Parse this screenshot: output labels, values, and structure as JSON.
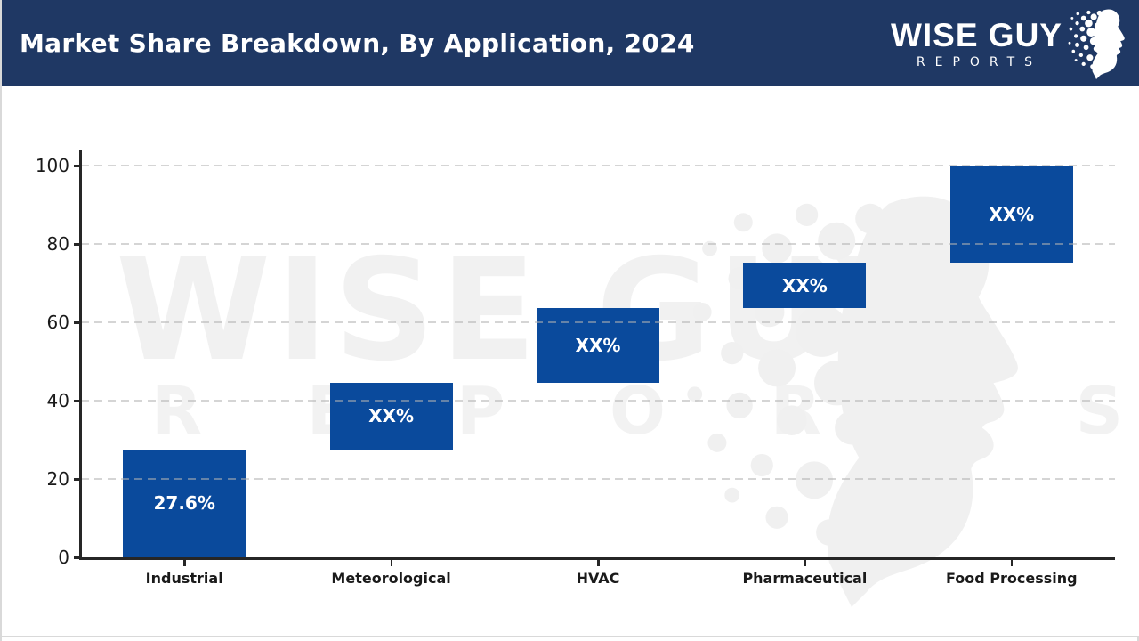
{
  "header": {
    "title": "Market Share Breakdown, By Application, 2024",
    "logo_line1": "WISE GUY",
    "logo_line2": "REPORTS"
  },
  "watermark": {
    "line1": "WISE GUY",
    "line2": "R E P O R T S"
  },
  "chart_data": {
    "type": "bar",
    "subtype": "waterfall",
    "title": "Market Share Breakdown, By Application, 2024",
    "categories": [
      "Industrial",
      "Meteorological",
      "HVAC",
      "Pharmaceutical",
      "Food Processing"
    ],
    "segments": [
      {
        "category": "Industrial",
        "start": 0,
        "end": 27.6,
        "label": "27.6%"
      },
      {
        "category": "Meteorological",
        "start": 27.6,
        "end": 44.6,
        "label": "XX%"
      },
      {
        "category": "HVAC",
        "start": 44.6,
        "end": 63.6,
        "label": "XX%"
      },
      {
        "category": "Pharmaceutical",
        "start": 63.6,
        "end": 75.2,
        "label": "XX%"
      },
      {
        "category": "Food Processing",
        "start": 75.2,
        "end": 100,
        "label": "XX%"
      }
    ],
    "xlabel": "",
    "ylabel": "",
    "ylim": [
      0,
      100
    ],
    "yticks": [
      0,
      20,
      40,
      60,
      80,
      100
    ],
    "grid": true,
    "grid_style": "dashed",
    "legend": false,
    "bar_color": "#0a4a9c",
    "unit": "%"
  },
  "colors": {
    "header_bg": "#1f3864",
    "bar": "#0a4a9c",
    "axis": "#262626",
    "watermark": "#f1f1f1"
  }
}
